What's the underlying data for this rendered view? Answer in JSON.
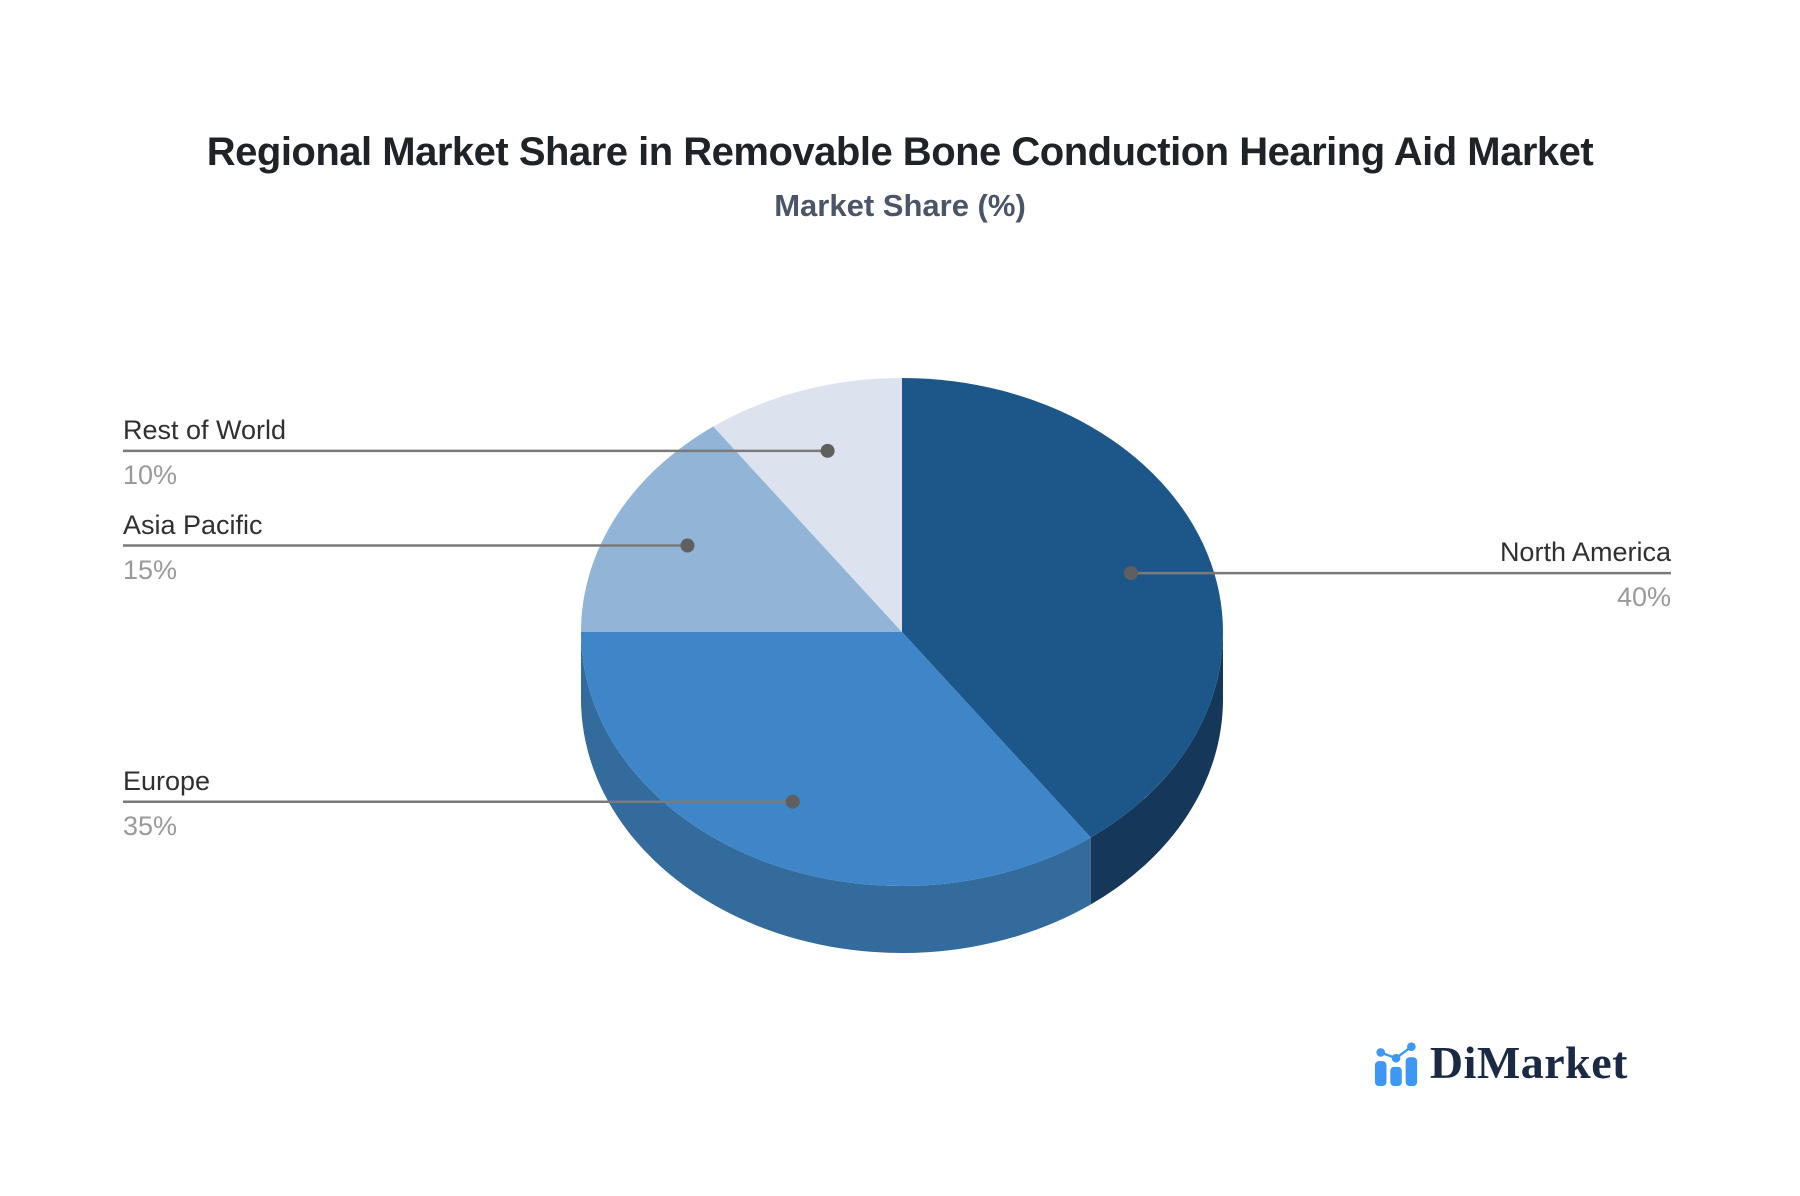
{
  "page": {
    "background": "#FFFFFF"
  },
  "chart_data": {
    "type": "pie",
    "style": "pseudo-3d",
    "title": "Regional Market Share in Removable Bone Conduction Hearing Aid Market",
    "subtitle": "Market Share (%)",
    "unit": "%",
    "direction": "clockwise",
    "start_angle": "12-oclock",
    "legend": "none",
    "labels_leader_lines": true,
    "slices": [
      {
        "label": "North America",
        "value": 40,
        "display_value": "40%",
        "color": "#1D5789",
        "side_color": "#15375A",
        "label_side": "right"
      },
      {
        "label": "Europe",
        "value": 35,
        "display_value": "35%",
        "color": "#3E86C7",
        "side_color": "#336B9D",
        "label_side": "left"
      },
      {
        "label": "Asia Pacific",
        "value": 15,
        "display_value": "15%",
        "color": "#92B4D7",
        "side_color": "#7FA3C9",
        "label_side": "left"
      },
      {
        "label": "Rest of World",
        "value": 10,
        "display_value": "10%",
        "color": "#DCE3EE",
        "side_color": "#C3CEDF",
        "label_side": "left"
      }
    ],
    "leader_line_color": "#7A7A7A",
    "leader_dot_color": "#5F5F5F",
    "label_text_color": "#303030",
    "value_text_color": "#9A9A9A"
  },
  "branding": {
    "logo_text": "DiMarket",
    "logo_icon": "mini-bar-chart-trend-icon",
    "logo_text_color": "#1B2A44",
    "logo_icon_color": "#3D97F3"
  }
}
